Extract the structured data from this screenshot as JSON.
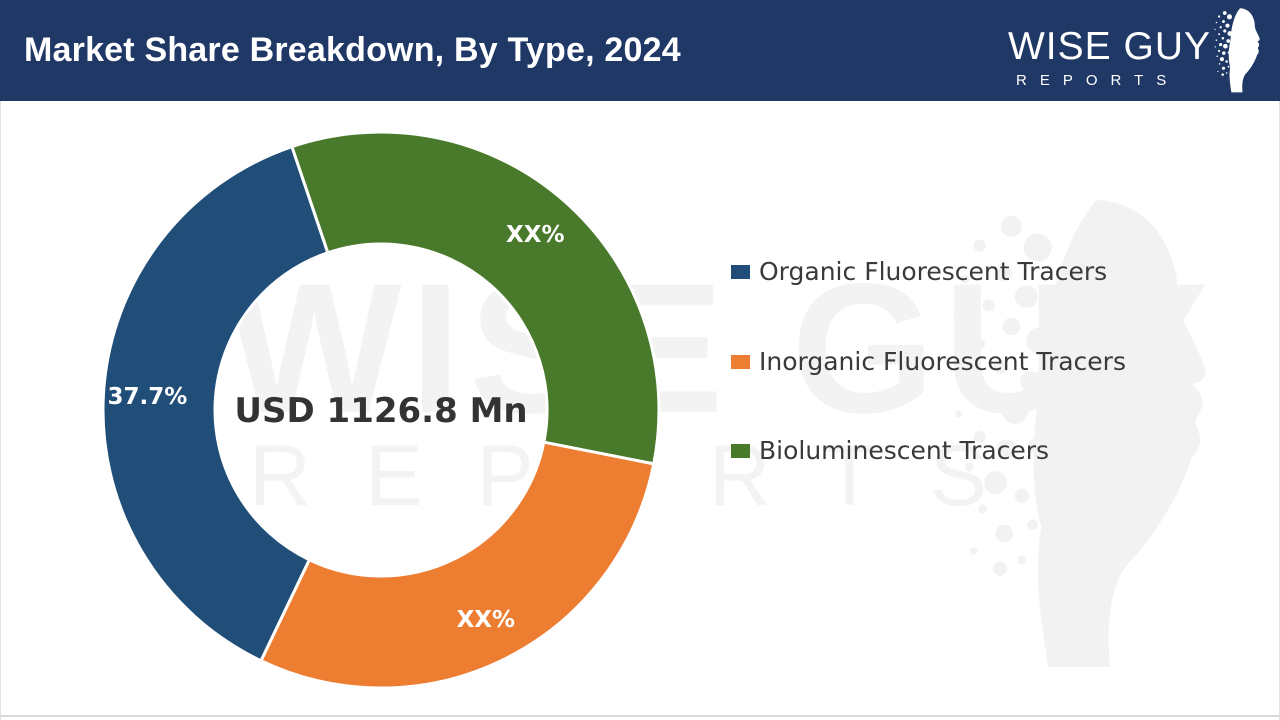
{
  "header": {
    "title": "Market Share Breakdown, By Type, 2024",
    "logo": {
      "name": "WISE GUY",
      "subtitle": "REPORTS"
    }
  },
  "watermark": {
    "line1": "WISE GUY",
    "line2": "REPORTS"
  },
  "chart_data": {
    "type": "donut",
    "title": "Market Share Breakdown, By Type, 2024",
    "center_label": "USD 1126.8 Mn",
    "start_angle_deg": 341.3,
    "rotation": "clockwise",
    "slices": [
      {
        "name": "Bioluminescent Tracers",
        "label": "XX%",
        "value_pct": 33.3,
        "color": "#497a2b"
      },
      {
        "name": "Inorganic Fluorescent Tracers",
        "label": "XX%",
        "value_pct": 29.0,
        "color": "#ed7d31"
      },
      {
        "name": "Organic Fluorescent Tracers",
        "label": "37.7%",
        "value_pct": 37.7,
        "color": "#204e78"
      }
    ],
    "legend": [
      {
        "label": "Organic Fluorescent Tracers",
        "color": "#204e78"
      },
      {
        "label": "Inorganic Fluorescent Tracers",
        "color": "#ed7d31"
      },
      {
        "label": "Bioluminescent Tracers",
        "color": "#497a2b"
      }
    ],
    "legend_position": "right"
  }
}
